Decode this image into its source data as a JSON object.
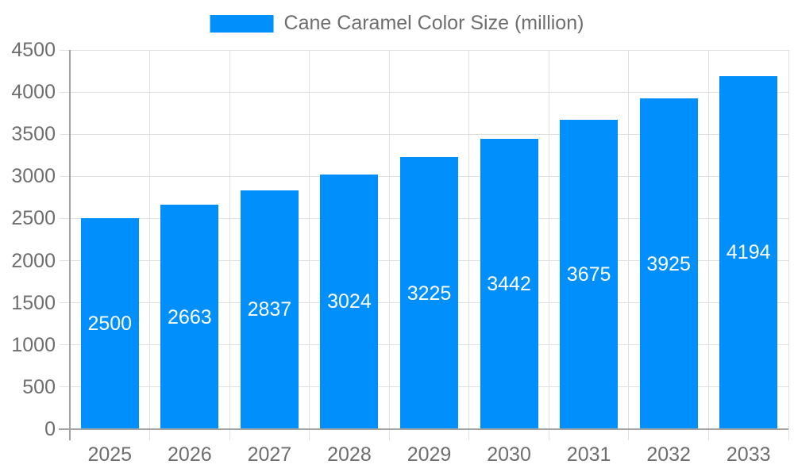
{
  "legend": {
    "label": "Cane Caramel Color Size (million)"
  },
  "chart_data": {
    "type": "bar",
    "title": "Cane Caramel Color Size (million)",
    "series_name": "Cane Caramel Color Size (million)",
    "categories": [
      "2025",
      "2026",
      "2027",
      "2028",
      "2029",
      "2030",
      "2031",
      "2032",
      "2033"
    ],
    "values": [
      2500,
      2663,
      2837,
      3024,
      3225,
      3442,
      3675,
      3925,
      4194
    ],
    "xlabel": "",
    "ylabel": "",
    "ylim": [
      0,
      4500
    ],
    "yticks": [
      0,
      500,
      1000,
      1500,
      2000,
      2500,
      3000,
      3500,
      4000,
      4500
    ],
    "grid": true,
    "legend_position": "top",
    "value_labels": "inside-center"
  },
  "colors": {
    "bar": "#008FFB",
    "grid": "#E0E0E0",
    "axis": "#A3A3A3",
    "text": "#6E6E6E",
    "bar_label": "#FFFFFF",
    "background": "#FFFFFF"
  }
}
